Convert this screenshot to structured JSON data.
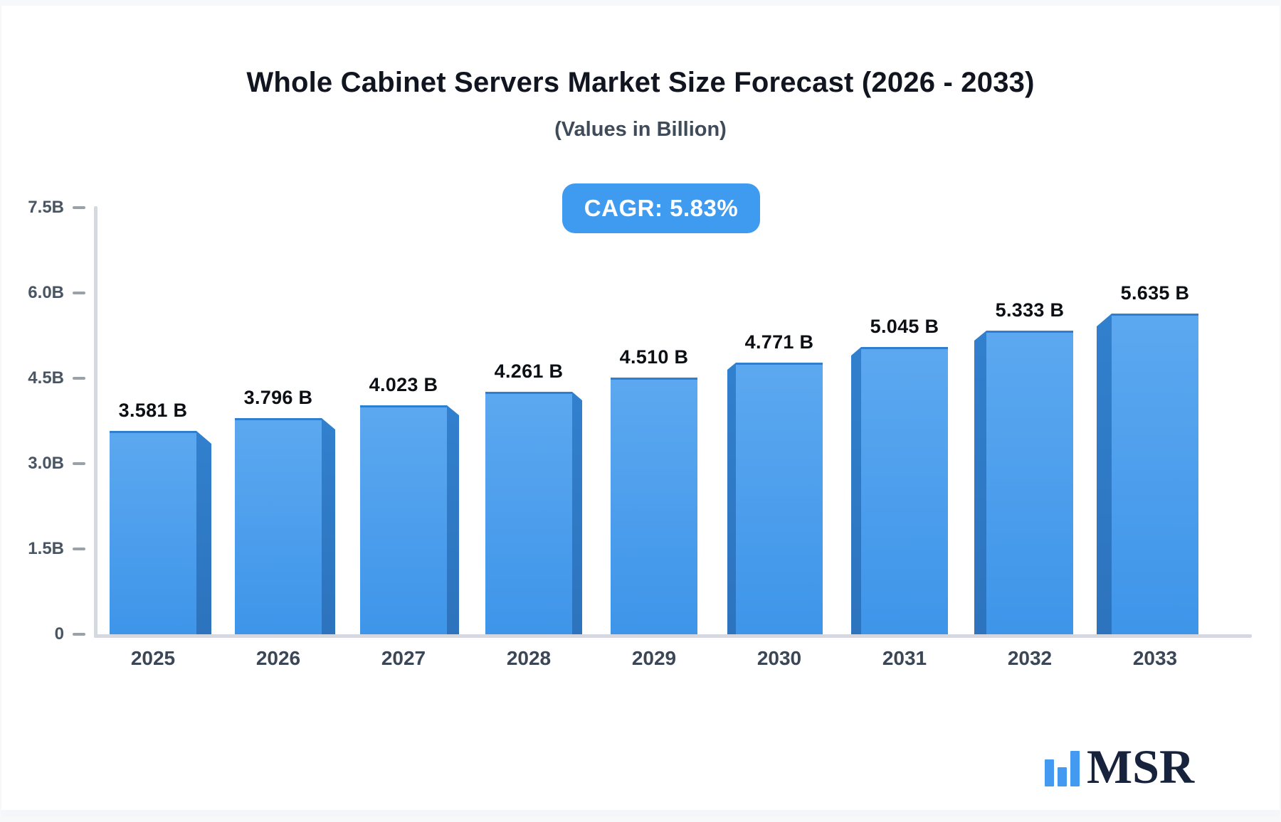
{
  "page": {
    "title": "Whole Cabinet Servers Market Size Forecast (2026 - 2033)",
    "subtitle": "(Values in Billion)",
    "cagr_badge_label": "CAGR: 5.83%",
    "logo_text": "MSR"
  },
  "colors": {
    "bar_face_top": "#5CA8F0",
    "bar_face_bottom": "#3E95E9",
    "bar_top_edge": "#2F7FD0",
    "bar_side_top": "#3180CE",
    "bar_side_bottom": "#2D73BD",
    "badge_bg": "#3F9BEF",
    "axis_line": "#D5D9DF",
    "tick_dash": "#9AA1AB",
    "tick_text": "#4A5563",
    "year_text": "#3B4656",
    "value_text": "#0C0F14",
    "logo_bars": "#449AF0",
    "logo_text_color": "#17233C",
    "background": "#FFFFFF"
  },
  "chart_data": {
    "type": "bar",
    "style": "3d-perspective",
    "title": "Whole Cabinet Servers Market Size Forecast (2026 - 2033)",
    "subtitle": "(Values in Billion)",
    "cagr": "5.83%",
    "unit": "Billion",
    "categories": [
      "2025",
      "2026",
      "2027",
      "2028",
      "2029",
      "2030",
      "2031",
      "2032",
      "2033"
    ],
    "values": [
      3.581,
      3.796,
      4.023,
      4.261,
      4.51,
      4.771,
      5.045,
      5.333,
      5.635
    ],
    "value_labels": [
      "3.581 B",
      "3.796 B",
      "4.023 B",
      "4.261 B",
      "4.510 B",
      "4.771 B",
      "5.045 B",
      "5.333 B",
      "5.635 B"
    ],
    "y_ticks": [
      {
        "label": "7.5B",
        "value": 7.5
      },
      {
        "label": "6.0B",
        "value": 6.0
      },
      {
        "label": "4.5B",
        "value": 4.5
      },
      {
        "label": "3.0B",
        "value": 3.0
      },
      {
        "label": "1.5B",
        "value": 1.5
      },
      {
        "label": "0",
        "value": 0
      }
    ],
    "ylim": [
      0,
      7.5
    ],
    "grid": false,
    "legend": false
  }
}
